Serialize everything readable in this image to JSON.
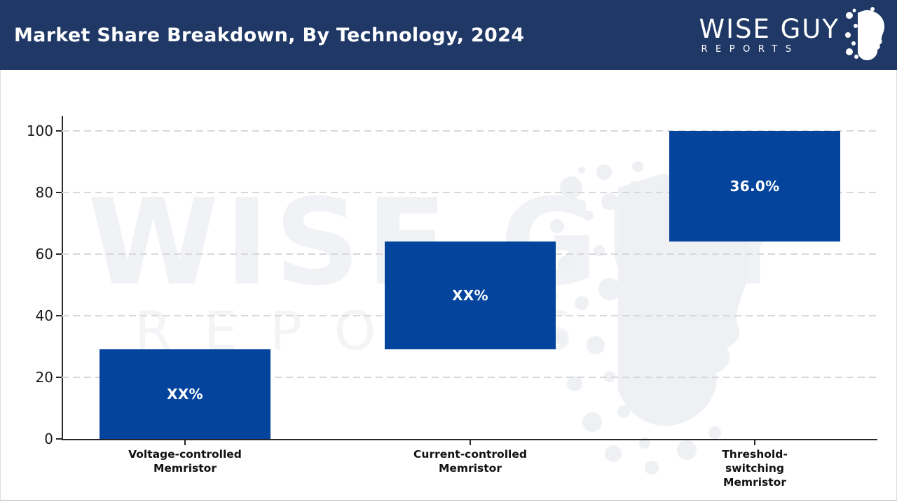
{
  "header": {
    "title": "Market Share Breakdown, By Technology, 2024",
    "bg_color": "#1f3866",
    "logo": {
      "line1": "WISE GUY",
      "line2": "REPORTS"
    }
  },
  "watermark": {
    "line1": "WISE GUY",
    "line2": "REPORTS"
  },
  "chart_data": {
    "type": "bar",
    "subtype": "floating-waterfall",
    "title": "Market Share Breakdown, By Technology, 2024",
    "xlabel": "",
    "ylabel": "",
    "ylim": [
      0,
      105
    ],
    "yticks": [
      0,
      20,
      40,
      60,
      80,
      100
    ],
    "grid": "dashed-horizontal",
    "legend": "none",
    "bar_color": "#04449c",
    "axis_color": "#262626",
    "grid_color": "#d8d8d8",
    "categories": [
      "Voltage-controlled\nMemristor",
      "Current-controlled\nMemristor",
      "Threshold-\nswitching\nMemristor"
    ],
    "bars": [
      {
        "category": "Voltage-controlled Memristor",
        "start": 0,
        "end": 29,
        "value": 29,
        "label": "XX%"
      },
      {
        "category": "Current-controlled Memristor",
        "start": 29,
        "end": 64,
        "value": 35,
        "label": "XX%"
      },
      {
        "category": "Threshold-switching Memristor",
        "start": 64,
        "end": 100,
        "value": 36,
        "label": "36.0%"
      }
    ]
  }
}
